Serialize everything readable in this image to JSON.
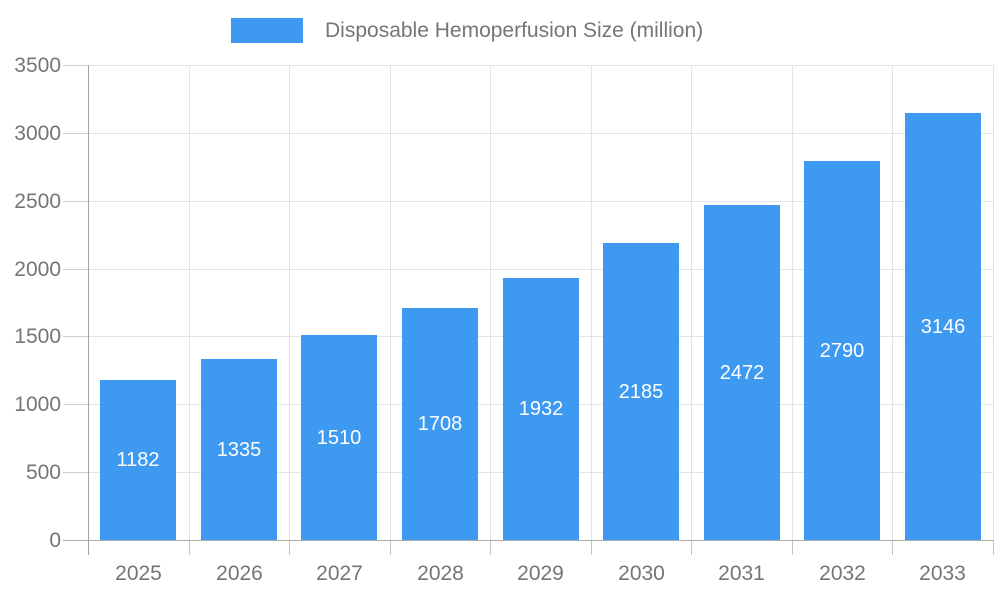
{
  "legend": {
    "label": "Disposable Hemoperfusion Size (million)"
  },
  "chart_data": {
    "type": "bar",
    "title": "Disposable Hemoperfusion Size (million)",
    "categories": [
      "2025",
      "2026",
      "2027",
      "2028",
      "2029",
      "2030",
      "2031",
      "2032",
      "2033"
    ],
    "values": [
      1182,
      1335,
      1510,
      1708,
      1932,
      2185,
      2472,
      2790,
      3146
    ],
    "value_labels": [
      "1182",
      "1335",
      "1510",
      "1708",
      "1932",
      "2185",
      "2472",
      "2790",
      "3146"
    ],
    "xlabel": "",
    "ylabel": "",
    "ylim": [
      0,
      3500
    ],
    "yticks": [
      0,
      500,
      1000,
      1500,
      2000,
      2500,
      3000,
      3500
    ],
    "ytick_labels": [
      "0",
      "500",
      "1000",
      "1500",
      "2000",
      "2500",
      "3000",
      "3500"
    ],
    "grid": true,
    "legend_position": "top",
    "bar_color": "#3D9AF0",
    "value_label_color": "#ffffff",
    "axis_text_color": "#757575",
    "gridline_color": "#e4e4e4"
  }
}
